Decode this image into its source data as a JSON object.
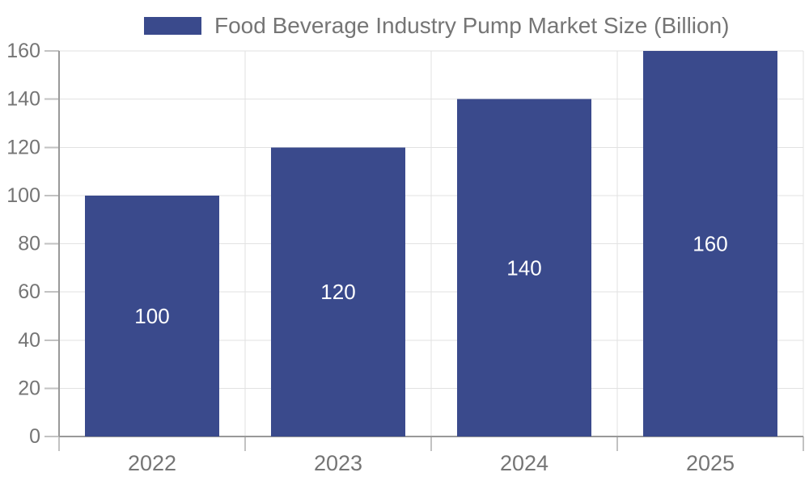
{
  "chart_data": {
    "type": "bar",
    "categories": [
      "2022",
      "2023",
      "2024",
      "2025"
    ],
    "series": [
      {
        "name": "Food Beverage Industry Pump Market Size (Billion)",
        "values": [
          100,
          120,
          140,
          160
        ]
      }
    ],
    "value_labels": [
      "100",
      "120",
      "140",
      "160"
    ],
    "title": "",
    "xlabel": "",
    "ylabel": "",
    "ylim": [
      0,
      160
    ],
    "ytick_step": 20,
    "ytick_labels": [
      "0",
      "20",
      "40",
      "60",
      "80",
      "100",
      "120",
      "140",
      "160"
    ],
    "grid": true,
    "legend_position": "top-left",
    "colors": {
      "bar": "#3A4A8C",
      "axis": "#999999",
      "tick": "#C2C2C2",
      "grid": "#E2E2E2",
      "text": "#757575",
      "value_label": "#FFFFFF",
      "background": "#FFFFFF"
    }
  }
}
